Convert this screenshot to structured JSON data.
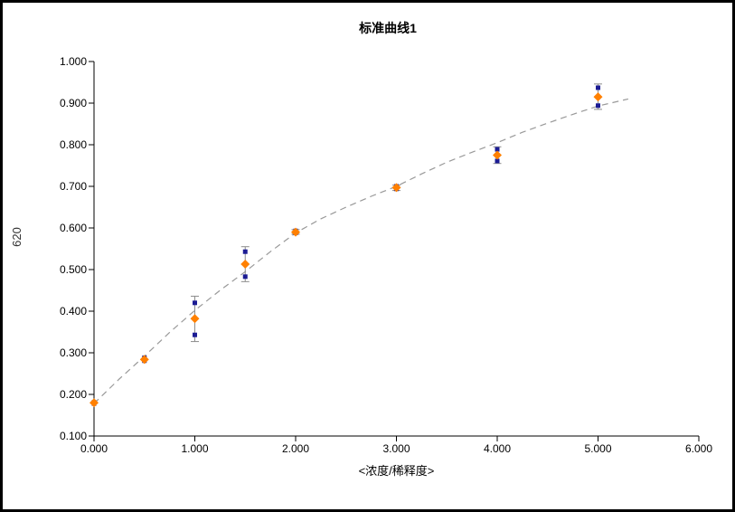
{
  "chart_data": {
    "type": "scatter",
    "title": "标准曲线1",
    "xlabel": "<浓度/稀释度>",
    "ylabel": "620",
    "xlim": [
      0.0,
      6.0
    ],
    "ylim": [
      0.1,
      1.0
    ],
    "grid": false,
    "legend": "none",
    "x_ticks": {
      "values": [
        0,
        1,
        2,
        3,
        4,
        5,
        6
      ],
      "labels": [
        "0.000",
        "1.000",
        "2.000",
        "3.000",
        "4.000",
        "5.000",
        "6.000"
      ]
    },
    "y_ticks": {
      "values": [
        1.0,
        0.9,
        0.8,
        0.7,
        0.6,
        0.5,
        0.4,
        0.3,
        0.2,
        0.1
      ],
      "labels": [
        "1.000",
        "0.900",
        "0.800",
        "0.700",
        "0.600",
        "0.500",
        "0.400",
        "0.300",
        "0.200",
        "0.100"
      ]
    },
    "points": [
      {
        "x": 0.0,
        "mean": 0.18,
        "replicates": [
          0.181,
          0.178
        ],
        "error_bar": null
      },
      {
        "x": 0.5,
        "mean": 0.284,
        "replicates": [
          0.288,
          0.281
        ],
        "error_bar": null
      },
      {
        "x": 1.0,
        "mean": 0.382,
        "replicates": [
          0.42,
          0.343
        ],
        "error_bar": [
          0.327,
          0.436
        ]
      },
      {
        "x": 1.5,
        "mean": 0.513,
        "replicates": [
          0.543,
          0.483
        ],
        "error_bar": [
          0.471,
          0.555
        ]
      },
      {
        "x": 2.0,
        "mean": 0.59,
        "replicates": [
          0.593,
          0.588
        ],
        "error_bar": [
          0.585,
          0.596
        ]
      },
      {
        "x": 3.0,
        "mean": 0.697,
        "replicates": [
          0.7,
          0.694
        ],
        "error_bar": [
          0.69,
          0.703
        ]
      },
      {
        "x": 4.0,
        "mean": 0.775,
        "replicates": [
          0.789,
          0.761
        ],
        "error_bar": [
          0.755,
          0.795
        ]
      },
      {
        "x": 5.0,
        "mean": 0.915,
        "replicates": [
          0.937,
          0.894
        ],
        "error_bar": [
          0.885,
          0.946
        ]
      }
    ],
    "fit_curve": {
      "style": "dashed",
      "x": [
        0.0,
        0.25,
        0.5,
        0.75,
        1.0,
        1.25,
        1.5,
        1.75,
        2.0,
        2.25,
        2.5,
        2.75,
        3.0,
        3.25,
        3.5,
        3.75,
        4.0,
        4.25,
        4.5,
        4.75,
        5.0,
        5.3
      ],
      "y": [
        0.178,
        0.237,
        0.292,
        0.349,
        0.402,
        0.45,
        0.495,
        0.543,
        0.588,
        0.622,
        0.65,
        0.676,
        0.7,
        0.73,
        0.758,
        0.782,
        0.805,
        0.83,
        0.852,
        0.873,
        0.893,
        0.91
      ]
    }
  },
  "colors": {
    "mean_marker": "#ff8000",
    "replicate_marker": "#1c1c94",
    "error_bar": "#8c8c8c",
    "fit_curve": "#999999",
    "axis": "#000000",
    "text": "#000000",
    "background": "#ffffff",
    "border": "#000000"
  }
}
